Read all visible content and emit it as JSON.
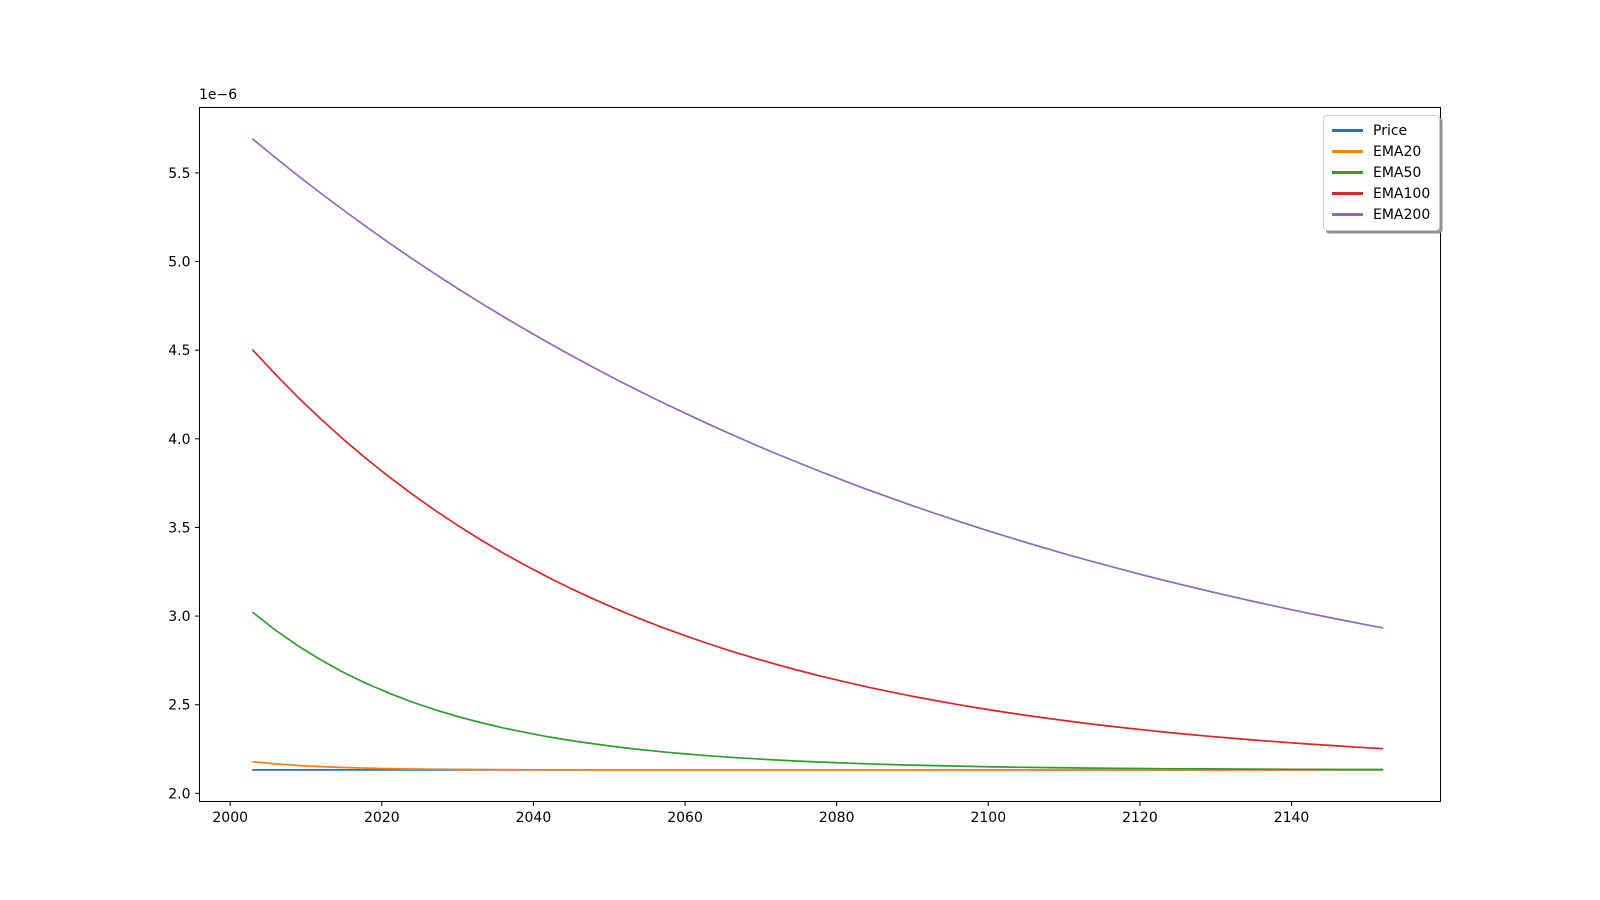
{
  "figure": {
    "background": "#ffffff",
    "border_color": "#000000",
    "tick_color": "#000000"
  },
  "legend": {
    "position": "upper right",
    "border_color": "#cccccc",
    "shadow": true
  },
  "chart_data": {
    "type": "line",
    "title": "",
    "xlabel": "",
    "ylabel": "",
    "y_offset_text": "1e−6",
    "y_unit_multiplier": "1e-6",
    "grid": false,
    "legend_position": "upper right",
    "xlim": [
      1995.95,
      2159.65
    ],
    "ylim": [
      1.954,
      5.869
    ],
    "x_ticks": [
      2000,
      2020,
      2040,
      2060,
      2080,
      2100,
      2120,
      2140
    ],
    "y_ticks": [
      2.0,
      2.5,
      3.0,
      3.5,
      4.0,
      4.5,
      5.0,
      5.5
    ],
    "x": [
      2003,
      2006,
      2009,
      2012,
      2015,
      2018,
      2021,
      2024,
      2027,
      2030,
      2033,
      2036,
      2039,
      2042,
      2045,
      2048,
      2051,
      2054,
      2057,
      2060,
      2063,
      2066,
      2069,
      2072,
      2075,
      2078,
      2081,
      2084,
      2087,
      2090,
      2093,
      2096,
      2099,
      2102,
      2105,
      2108,
      2111,
      2114,
      2117,
      2120,
      2123,
      2126,
      2129,
      2132,
      2135,
      2138,
      2141,
      2144,
      2147,
      2150,
      2152
    ],
    "series": [
      {
        "name": "Price",
        "color": "#1f77b4",
        "values": [
          2.132,
          2.132,
          2.132,
          2.132,
          2.132,
          2.132,
          2.132,
          2.132,
          2.132,
          2.132,
          2.132,
          2.132,
          2.132,
          2.132,
          2.132,
          2.132,
          2.132,
          2.132,
          2.132,
          2.132,
          2.132,
          2.132,
          2.132,
          2.132,
          2.132,
          2.132,
          2.132,
          2.132,
          2.132,
          2.132,
          2.132,
          2.132,
          2.132,
          2.132,
          2.132,
          2.132,
          2.132,
          2.132,
          2.132,
          2.132,
          2.132,
          2.132,
          2.132,
          2.132,
          2.132,
          2.132,
          2.132,
          2.132,
          2.132,
          2.132,
          2.132
        ]
      },
      {
        "name": "EMA20",
        "color": "#ff7f0e",
        "values": [
          2.178,
          2.1661,
          2.1572,
          2.1507,
          2.1459,
          2.1423,
          2.1396,
          2.1376,
          2.1362,
          2.1351,
          2.1343,
          2.1337,
          2.1333,
          2.1329,
          2.1327,
          2.1325,
          2.1324,
          2.1323,
          2.1322,
          2.1322,
          2.1321,
          2.1321,
          2.1321,
          2.132,
          2.132,
          2.132,
          2.132,
          2.132,
          2.132,
          2.132,
          2.132,
          2.132,
          2.132,
          2.132,
          2.132,
          2.132,
          2.132,
          2.132,
          2.132,
          2.132,
          2.132,
          2.132,
          2.132,
          2.132,
          2.132,
          2.132,
          2.132,
          2.132,
          2.132,
          2.132,
          2.132
        ]
      },
      {
        "name": "EMA50",
        "color": "#2ca02c",
        "values": [
          3.02,
          2.9196,
          2.8305,
          2.7515,
          2.6814,
          2.6193,
          2.5642,
          2.5153,
          2.472,
          2.4335,
          2.3994,
          2.3692,
          2.3424,
          2.3186,
          2.2975,
          2.2787,
          2.2621,
          2.2474,
          2.2344,
          2.2228,
          2.2125,
          2.2034,
          2.1953,
          2.1882,
          2.1818,
          2.1762,
          2.1712,
          2.1668,
          2.1628,
          2.1593,
          2.1563,
          2.1535,
          2.1511,
          2.1489,
          2.147,
          2.1453,
          2.1438,
          2.1425,
          2.1413,
          2.1402,
          2.1393,
          2.1385,
          2.1377,
          2.1371,
          2.1365,
          2.136,
          2.1356,
          2.1352,
          2.1348,
          2.1345,
          2.1343
        ]
      },
      {
        "name": "EMA100",
        "color": "#d62728",
        "values": [
          4.5,
          4.3621,
          4.2322,
          4.1099,
          3.9947,
          3.8863,
          3.7841,
          3.6879,
          3.5973,
          3.512,
          3.4316,
          3.3559,
          3.2847,
          3.2175,
          3.1543,
          3.0948,
          3.0387,
          2.9859,
          2.9362,
          2.8894,
          2.8453,
          2.8037,
          2.7646,
          2.7278,
          2.6931,
          2.6604,
          2.6296,
          2.6007,
          2.5734,
          2.5477,
          2.5235,
          2.5007,
          2.4792,
          2.459,
          2.4399,
          2.422,
          2.4051,
          2.3892,
          2.3742,
          2.3601,
          2.3468,
          2.3343,
          2.3226,
          2.3115,
          2.301,
          2.2912,
          2.2819,
          2.2732,
          2.2649,
          2.2572,
          2.2523
        ]
      },
      {
        "name": "EMA200",
        "color": "#9467bd",
        "values": [
          5.69,
          5.5848,
          5.4828,
          5.3838,
          5.2877,
          5.1944,
          5.1039,
          5.0161,
          4.9308,
          4.8481,
          4.7678,
          4.6899,
          4.6144,
          4.541,
          4.4698,
          4.4007,
          4.3337,
          4.2686,
          4.2054,
          4.1442,
          4.0847,
          4.027,
          3.971,
          3.9166,
          3.8639,
          3.8127,
          3.763,
          3.7148,
          3.6681,
          3.6227,
          3.5786,
          3.5359,
          3.4944,
          3.4541,
          3.415,
          3.3771,
          3.3403,
          3.3046,
          3.2699,
          3.2363,
          3.2037,
          3.172,
          3.1413,
          3.1114,
          3.0825,
          3.0544,
          3.0271,
          3.0007,
          2.975,
          2.9501,
          2.9339
        ]
      }
    ]
  }
}
